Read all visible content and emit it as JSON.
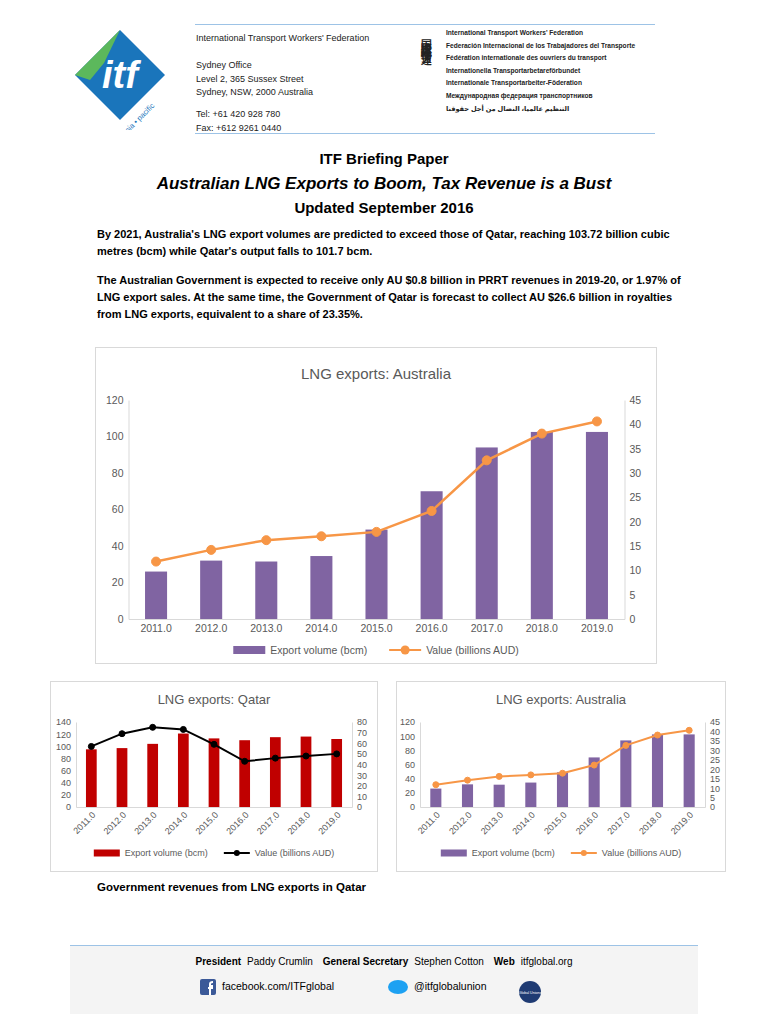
{
  "header": {
    "logo": {
      "text": "itf",
      "subtext": "asia • pacific"
    },
    "organisation": "International Transport Workers' Federation",
    "address": [
      "Sydney Office",
      "Level 2, 365 Sussex Street",
      "Sydney, NSW, 2000 Australia"
    ],
    "contact": [
      "Tel:  +61 420 928 780",
      "Fax:  +612 9261 0440"
    ],
    "vertical_name": "国際運輸労連",
    "names": [
      "International Transport Workers' Federation",
      "Federación Internacional de los Trabajadores del Transporte",
      "Fédération internationale des ouvriers du transport",
      "Internationella Transportarbetareförbundet",
      "Internationale Transportarbeiter-Föderation",
      "Международная федерация транспортников",
      "التنظيم عالميا، النضال من أجل حقوقنا"
    ]
  },
  "title": {
    "kicker": "ITF Briefing Paper",
    "headline": "Australian LNG Exports to Boom, Tax Revenue is a Bust",
    "updated": "Updated September 2016"
  },
  "paragraphs": [
    "By 2021, Australia's LNG export volumes are predicted to exceed those of Qatar, reaching 103.72 billion cubic metres (bcm) while Qatar's output falls to 101.7 bcm.",
    "The Australian Government is expected to receive only AU $0.8 billion in PRRT revenues in 2019-20, or 1.97% of LNG export sales. At the same time, the Government of Qatar is forecast to collect AU $26.6 billion in royalties from LNG exports, equivalent to a share of 23.35%."
  ],
  "chart_data": [
    {
      "type": "bar",
      "title": "LNG exports: Australia",
      "categories": [
        "2011.0",
        "2012.0",
        "2013.0",
        "2014.0",
        "2015.0",
        "2016.0",
        "2017.0",
        "2018.0",
        "2019.0"
      ],
      "series": [
        {
          "name": "Export volume (bcm)",
          "type": "bar",
          "color": "#8064a2",
          "values": [
            26,
            32,
            31.5,
            34.5,
            49,
            70,
            94,
            102.5,
            102.5
          ]
        },
        {
          "name": "Value (billions AUD)",
          "type": "line",
          "color": "#f79646",
          "marker": "circle",
          "axis": "y2",
          "values": [
            11.8,
            14.2,
            16.2,
            17,
            17.9,
            22.2,
            32.6,
            38.1,
            40.6
          ]
        }
      ],
      "ylim": [
        0,
        120
      ],
      "yticks": [
        0,
        20,
        40,
        60,
        80,
        100,
        120
      ],
      "y2lim": [
        0,
        45
      ],
      "y2ticks": [
        0,
        5,
        10,
        15,
        20,
        25,
        30,
        35,
        40,
        45
      ],
      "legend": "bottom",
      "grid": false
    },
    {
      "type": "bar",
      "title": "LNG exports: Qatar",
      "categories": [
        "2011.0",
        "2012.0",
        "2013.0",
        "2014.0",
        "2015.0",
        "2016.0",
        "2017.0",
        "2018.0",
        "2019.0"
      ],
      "series": [
        {
          "name": "Export volume (bcm)",
          "type": "bar",
          "color": "#c00000",
          "values": [
            95,
            97,
            104,
            121,
            113,
            110,
            115,
            116,
            112
          ]
        },
        {
          "name": "Value (billions AUD)",
          "type": "line",
          "color": "#000000",
          "marker": "circle",
          "axis": "y2",
          "values": [
            57,
            69,
            75,
            73,
            59,
            43,
            46,
            48,
            50
          ]
        }
      ],
      "ylim": [
        0,
        140
      ],
      "yticks": [
        0,
        20,
        40,
        60,
        80,
        100,
        120,
        140
      ],
      "y2lim": [
        0,
        80
      ],
      "y2ticks": [
        0,
        10,
        20,
        30,
        40,
        50,
        60,
        70,
        80
      ],
      "legend": "bottom",
      "grid": false
    },
    {
      "type": "bar",
      "title": "LNG exports: Australia",
      "categories": [
        "2011.0",
        "2012.0",
        "2013.0",
        "2014.0",
        "2015.0",
        "2016.0",
        "2017.0",
        "2018.0",
        "2019.0"
      ],
      "series": [
        {
          "name": "Export volume (bcm)",
          "type": "bar",
          "color": "#8064a2",
          "values": [
            26,
            32,
            31.5,
            34.5,
            49,
            70,
            94,
            102.5,
            102.5
          ]
        },
        {
          "name": "Value (billions AUD)",
          "type": "line",
          "color": "#f79646",
          "marker": "circle",
          "axis": "y2",
          "values": [
            11.8,
            14.2,
            16.2,
            17,
            17.9,
            22.2,
            32.6,
            38.1,
            40.6
          ]
        }
      ],
      "ylim": [
        0,
        120
      ],
      "yticks": [
        0,
        20,
        40,
        60,
        80,
        100,
        120
      ],
      "y2lim": [
        0,
        45
      ],
      "y2ticks": [
        0,
        5,
        10,
        15,
        20,
        25,
        30,
        35,
        40,
        45
      ],
      "legend": "bottom",
      "grid": false
    }
  ],
  "caption": "Government revenues from LNG exports in Qatar",
  "footer": {
    "officers": [
      {
        "role": "President",
        "name": "Paddy Crumlin"
      },
      {
        "role": "General Secretary",
        "name": "Stephen Cotton"
      },
      {
        "role": "Web",
        "name": "itfglobal.org"
      }
    ],
    "facebook": "facebook.com/ITFglobal",
    "twitter": "@itfglobalunion",
    "badge": "Global Unions"
  }
}
